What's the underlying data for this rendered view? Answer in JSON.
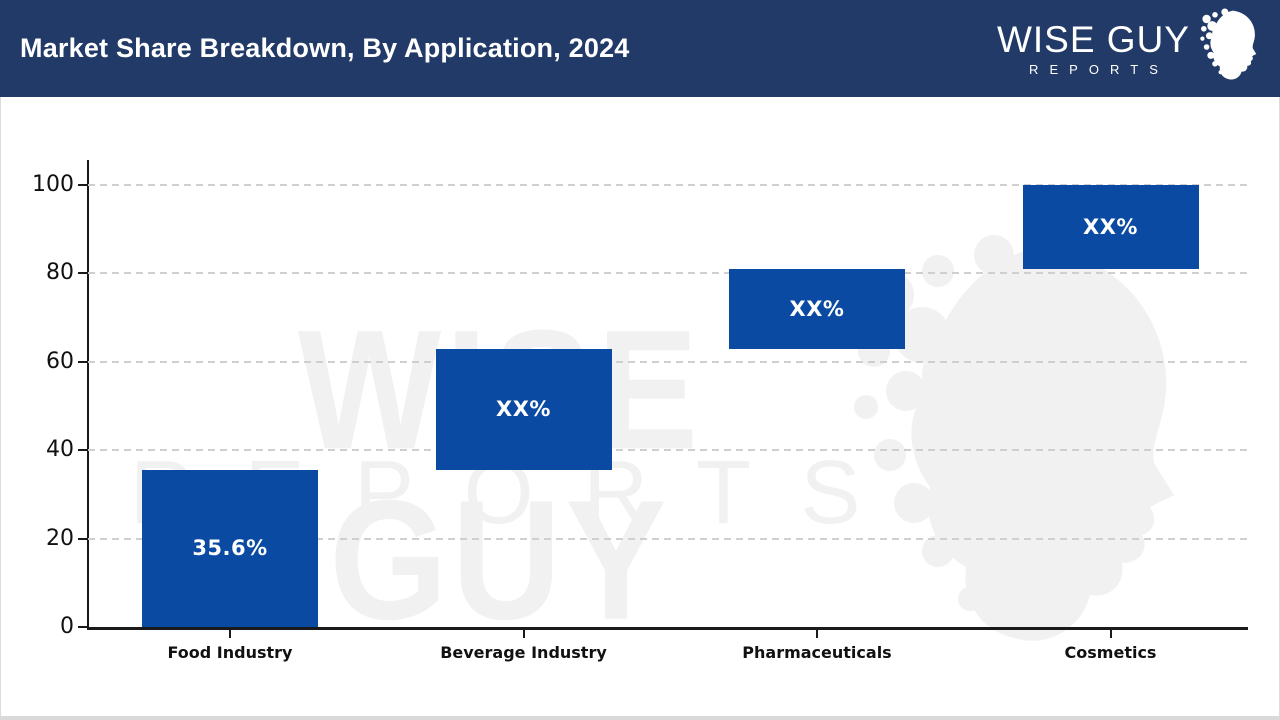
{
  "header": {
    "title": "Market Share Breakdown, By Application, 2024",
    "bg_color": "#223a67",
    "logo": {
      "line1": "WISE GUY",
      "line2": "REPORTS"
    }
  },
  "watermark": {
    "line1": "WISE GUY",
    "line2": "REPORTS"
  },
  "chart_data": {
    "type": "bar",
    "subtype": "waterfall",
    "title": "Market Share Breakdown, By Application, 2024",
    "categories": [
      "Food Industry",
      "Beverage Industry",
      "Pharmaceuticals",
      "Cosmetics"
    ],
    "segments": [
      {
        "category": "Food Industry",
        "start": 0,
        "end": 35.6,
        "label": "35.6%"
      },
      {
        "category": "Beverage Industry",
        "start": 35.6,
        "end": 63,
        "label": "XX%"
      },
      {
        "category": "Pharmaceuticals",
        "start": 63,
        "end": 81,
        "label": "XX%"
      },
      {
        "category": "Cosmetics",
        "start": 81,
        "end": 100,
        "label": "XX%"
      }
    ],
    "y_ticks": [
      0,
      20,
      40,
      60,
      80,
      100
    ],
    "ylim": [
      0,
      105
    ],
    "xlabel": "",
    "ylabel": "",
    "grid": "horizontal-dashed",
    "legend": "none",
    "bar_color": "#0b4aa2",
    "value_label_color": "#ffffff",
    "axis_color": "#1a1a1a"
  }
}
